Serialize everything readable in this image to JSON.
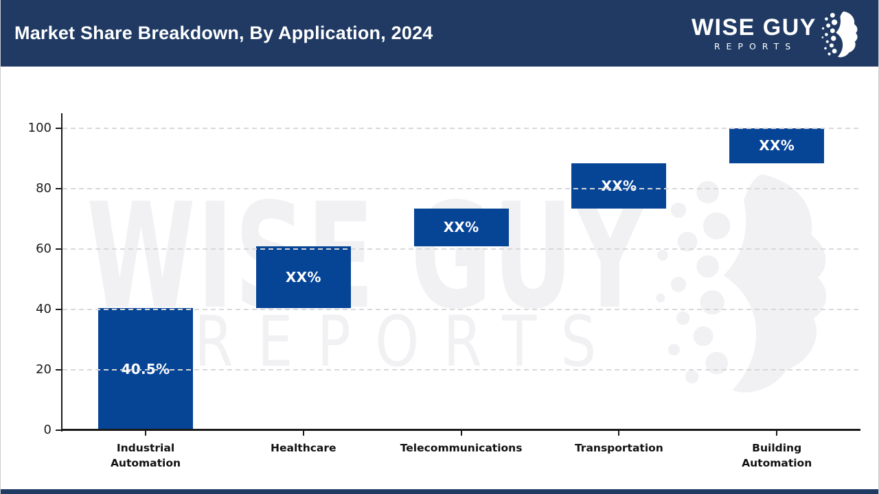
{
  "header": {
    "title": "Market Share Breakdown, By Application, 2024",
    "logo": {
      "name": "WISE GUY",
      "subtitle": "REPORTS"
    }
  },
  "watermark": {
    "name": "WISE GUY",
    "subtitle": "REPORTS"
  },
  "colors": {
    "header_bg": "#203a64",
    "bar": "#064496",
    "grid": "#d8d8d8",
    "axis": "#1a1a1a",
    "watermark": "#f1f1f4",
    "bar_label": "#ffffff"
  },
  "chart_data": {
    "type": "bar",
    "subtype": "waterfall",
    "title": "Market Share Breakdown, By Application, 2024",
    "xlabel": "",
    "ylabel": "",
    "ylim": [
      0,
      105
    ],
    "yticks": [
      0,
      20,
      40,
      60,
      80,
      100
    ],
    "grid": "horizontal-dashed",
    "legend": "none",
    "categories": [
      "Industrial Automation",
      "Healthcare",
      "Telecommunications",
      "Transportation",
      "Building Automation"
    ],
    "segments": [
      {
        "category": "Industrial Automation",
        "tick_label": "Industrial\nAutomation",
        "start": 0,
        "end": 40.5,
        "value": 40.5,
        "label": "40.5%"
      },
      {
        "category": "Healthcare",
        "tick_label": "Healthcare",
        "start": 40.5,
        "end": 61,
        "value": 20.5,
        "label": "XX%"
      },
      {
        "category": "Telecommunications",
        "tick_label": "Telecommunications",
        "start": 61,
        "end": 73.5,
        "value": 12.5,
        "label": "XX%"
      },
      {
        "category": "Transportation",
        "tick_label": "Transportation",
        "start": 73.5,
        "end": 88.5,
        "value": 15,
        "label": "XX%"
      },
      {
        "category": "Building Automation",
        "tick_label": "Building\nAutomation",
        "start": 88.5,
        "end": 100,
        "value": 11.5,
        "label": "XX%"
      }
    ]
  }
}
